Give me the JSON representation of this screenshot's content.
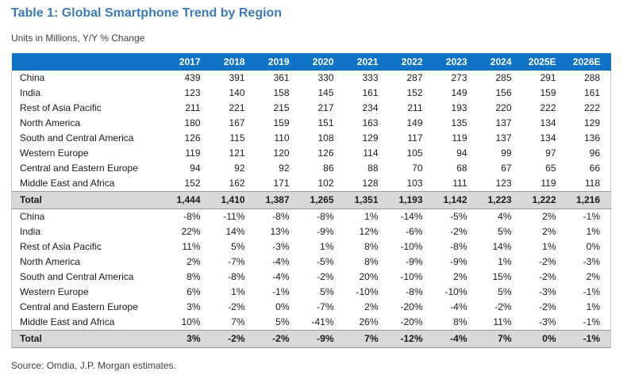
{
  "title": "Table 1: Global Smartphone Trend by Region",
  "subtitle": "Units in Millions, Y/Y % Change",
  "source": "Source: Omdia, J.P. Morgan estimates.",
  "colors": {
    "title_blue": "#3d7ab8",
    "header_bg": "#1173c5",
    "header_text": "#ffffff",
    "total_row_bg": "#d9d9d9",
    "body_text": "#1a1a1a",
    "table_border": "#c9c9c9"
  },
  "chart_data": {
    "type": "table",
    "title": "Table 1: Global Smartphone Trend by Region",
    "subtitle": "Units in Millions, Y/Y % Change",
    "columns": [
      "2017",
      "2018",
      "2019",
      "2020",
      "2021",
      "2022",
      "2023",
      "2024",
      "2025E",
      "2026E"
    ],
    "sections": [
      {
        "name": "units_in_millions",
        "rows": [
          {
            "label": "China",
            "values": [
              "439",
              "391",
              "361",
              "330",
              "333",
              "287",
              "273",
              "285",
              "291",
              "288"
            ]
          },
          {
            "label": "India",
            "values": [
              "123",
              "140",
              "158",
              "145",
              "161",
              "152",
              "149",
              "156",
              "159",
              "161"
            ]
          },
          {
            "label": "Rest of Asia Pacific",
            "values": [
              "211",
              "221",
              "215",
              "217",
              "234",
              "211",
              "193",
              "220",
              "222",
              "222"
            ]
          },
          {
            "label": "North America",
            "values": [
              "180",
              "167",
              "159",
              "151",
              "163",
              "149",
              "135",
              "137",
              "134",
              "129"
            ]
          },
          {
            "label": "South and Central America",
            "values": [
              "126",
              "115",
              "110",
              "108",
              "129",
              "117",
              "119",
              "137",
              "134",
              "136"
            ]
          },
          {
            "label": "Western Europe",
            "values": [
              "119",
              "121",
              "120",
              "126",
              "114",
              "105",
              "94",
              "99",
              "97",
              "96"
            ]
          },
          {
            "label": "Central and Eastern Europe",
            "values": [
              "94",
              "92",
              "92",
              "86",
              "88",
              "70",
              "68",
              "67",
              "65",
              "66"
            ]
          },
          {
            "label": "Middle East and Africa",
            "values": [
              "152",
              "162",
              "171",
              "102",
              "128",
              "103",
              "111",
              "123",
              "119",
              "118"
            ]
          }
        ],
        "total": {
          "label": "Total",
          "values": [
            "1,444",
            "1,410",
            "1,387",
            "1,265",
            "1,351",
            "1,193",
            "1,142",
            "1,223",
            "1,222",
            "1,216"
          ]
        }
      },
      {
        "name": "yoy_pct_change",
        "rows": [
          {
            "label": "China",
            "values": [
              "-8%",
              "-11%",
              "-8%",
              "-8%",
              "1%",
              "-14%",
              "-5%",
              "4%",
              "2%",
              "-1%"
            ]
          },
          {
            "label": "India",
            "values": [
              "22%",
              "14%",
              "13%",
              "-9%",
              "12%",
              "-6%",
              "-2%",
              "5%",
              "2%",
              "1%"
            ]
          },
          {
            "label": "Rest of Asia Pacific",
            "values": [
              "11%",
              "5%",
              "-3%",
              "1%",
              "8%",
              "-10%",
              "-8%",
              "14%",
              "1%",
              "0%"
            ]
          },
          {
            "label": "North America",
            "values": [
              "2%",
              "-7%",
              "-4%",
              "-5%",
              "8%",
              "-9%",
              "-9%",
              "1%",
              "-2%",
              "-3%"
            ]
          },
          {
            "label": "South and Central America",
            "values": [
              "8%",
              "-8%",
              "-4%",
              "-2%",
              "20%",
              "-10%",
              "2%",
              "15%",
              "-2%",
              "2%"
            ]
          },
          {
            "label": "Western Europe",
            "values": [
              "6%",
              "1%",
              "-1%",
              "5%",
              "-10%",
              "-8%",
              "-10%",
              "5%",
              "-3%",
              "-1%"
            ]
          },
          {
            "label": "Central and Eastern Europe",
            "values": [
              "3%",
              "-2%",
              "0%",
              "-7%",
              "2%",
              "-20%",
              "-4%",
              "-2%",
              "-2%",
              "1%"
            ]
          },
          {
            "label": "Middle East and Africa",
            "values": [
              "10%",
              "7%",
              "5%",
              "-41%",
              "26%",
              "-20%",
              "8%",
              "11%",
              "-3%",
              "-1%"
            ]
          }
        ],
        "total": {
          "label": "Total",
          "values": [
            "3%",
            "-2%",
            "-2%",
            "-9%",
            "7%",
            "-12%",
            "-4%",
            "7%",
            "0%",
            "-1%"
          ]
        }
      }
    ]
  }
}
